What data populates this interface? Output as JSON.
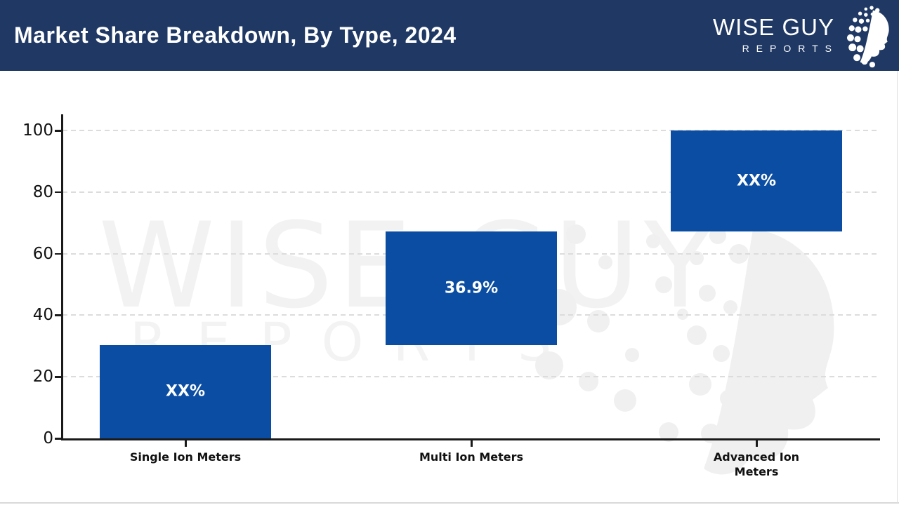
{
  "header": {
    "title": "Market Share Breakdown, By Type, 2024",
    "logo_line1": "WISE GUY",
    "logo_line2": "REPORTS"
  },
  "watermark": {
    "line1": "WISE GUY",
    "line2": "REPORTS"
  },
  "colors": {
    "header_bg": "#1f3864",
    "bar_blue": "#0b4da2",
    "gridline": "#dcdcdc",
    "axis": "#1a1a1a",
    "watermark_gray": "#f2f2f2",
    "bar_label_text": "#ffffff"
  },
  "chart_data": {
    "type": "bar",
    "subtype": "waterfall",
    "title": "Market Share Breakdown, By Type, 2024",
    "categories": [
      "Single Ion Meters",
      "Multi Ion Meters",
      "Advanced Ion Meters"
    ],
    "category_label_lines": [
      [
        "Single Ion Meters"
      ],
      [
        "Multi Ion Meters"
      ],
      [
        "Advanced Ion",
        "Meters"
      ]
    ],
    "segments": [
      {
        "category": "Single Ion Meters",
        "start": 0,
        "end": 30.4,
        "label": "XX%"
      },
      {
        "category": "Multi Ion Meters",
        "start": 30.4,
        "end": 67.3,
        "label": "36.9%"
      },
      {
        "category": "Advanced Ion Meters",
        "start": 67.3,
        "end": 100,
        "label": "XX%"
      }
    ],
    "bar_labels": [
      "XX%",
      "36.9%",
      "XX%"
    ],
    "xlabel": "",
    "ylabel": "",
    "ylim": [
      0,
      100
    ],
    "yticks": [
      0,
      20,
      40,
      60,
      80,
      100
    ],
    "grid": "horizontal-dashed",
    "legend": "none",
    "bar_color": "#0b4da2"
  }
}
